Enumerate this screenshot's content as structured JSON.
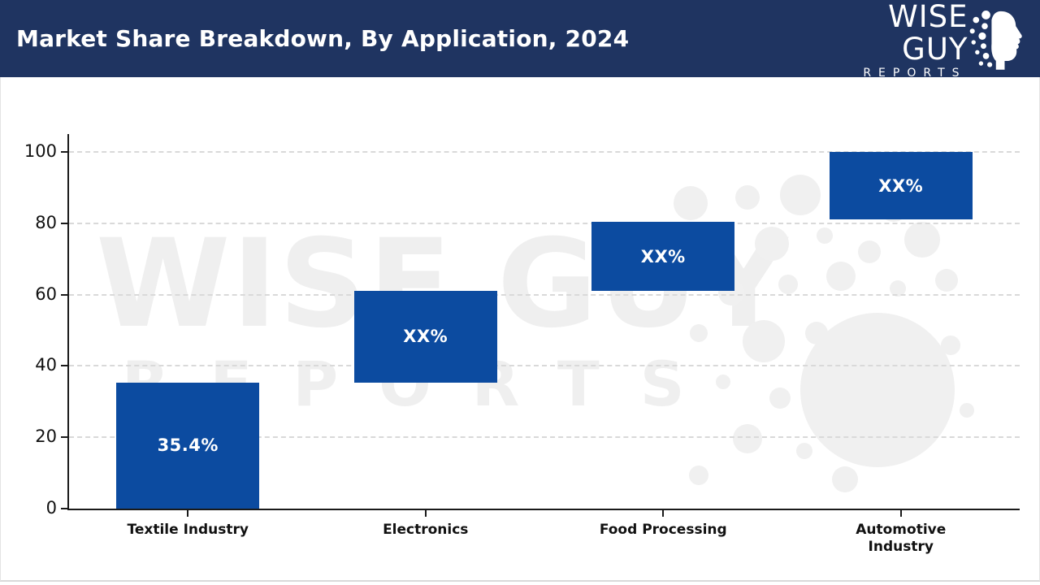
{
  "header": {
    "title": "Market Share Breakdown, By Application, 2024",
    "logo": {
      "primary": "WISE GUY",
      "secondary": "REPORTS"
    }
  },
  "watermark": {
    "primary": "WISE GUY",
    "secondary": "REPORTS"
  },
  "chart_data": {
    "type": "bar",
    "variant": "floating-waterfall",
    "title": "Market Share Breakdown, By Application, 2024",
    "categories": [
      "Textile Industry",
      "Electronics",
      "Food Processing",
      "Automotive Industry"
    ],
    "bars": [
      {
        "category": "Textile Industry",
        "category_lines": [
          "Textile Industry"
        ],
        "start": 0,
        "end": 35.4,
        "label": "35.4%"
      },
      {
        "category": "Electronics",
        "category_lines": [
          "Electronics"
        ],
        "start": 35.4,
        "end": 61,
        "label": "XX%"
      },
      {
        "category": "Food Processing",
        "category_lines": [
          "Food Processing"
        ],
        "start": 61,
        "end": 80.4,
        "label": "XX%"
      },
      {
        "category": "Automotive Industry",
        "category_lines": [
          "Automotive",
          "Industry"
        ],
        "start": 81,
        "end": 100,
        "label": "XX%"
      }
    ],
    "y_ticks": [
      0,
      20,
      40,
      60,
      80,
      100
    ],
    "ylim": [
      0,
      105
    ],
    "xlabel": "",
    "ylabel": "",
    "legend": "none",
    "grid": {
      "horizontal": true,
      "style": "dashed"
    }
  },
  "colors": {
    "header_bg": "#1f3461",
    "bar": "#0c4ba0",
    "bar_label": "#ffffff",
    "grid": "#d9d9d9",
    "axis": "#1a1a1a",
    "tick_label": "#111111",
    "watermark": "#efefef"
  }
}
